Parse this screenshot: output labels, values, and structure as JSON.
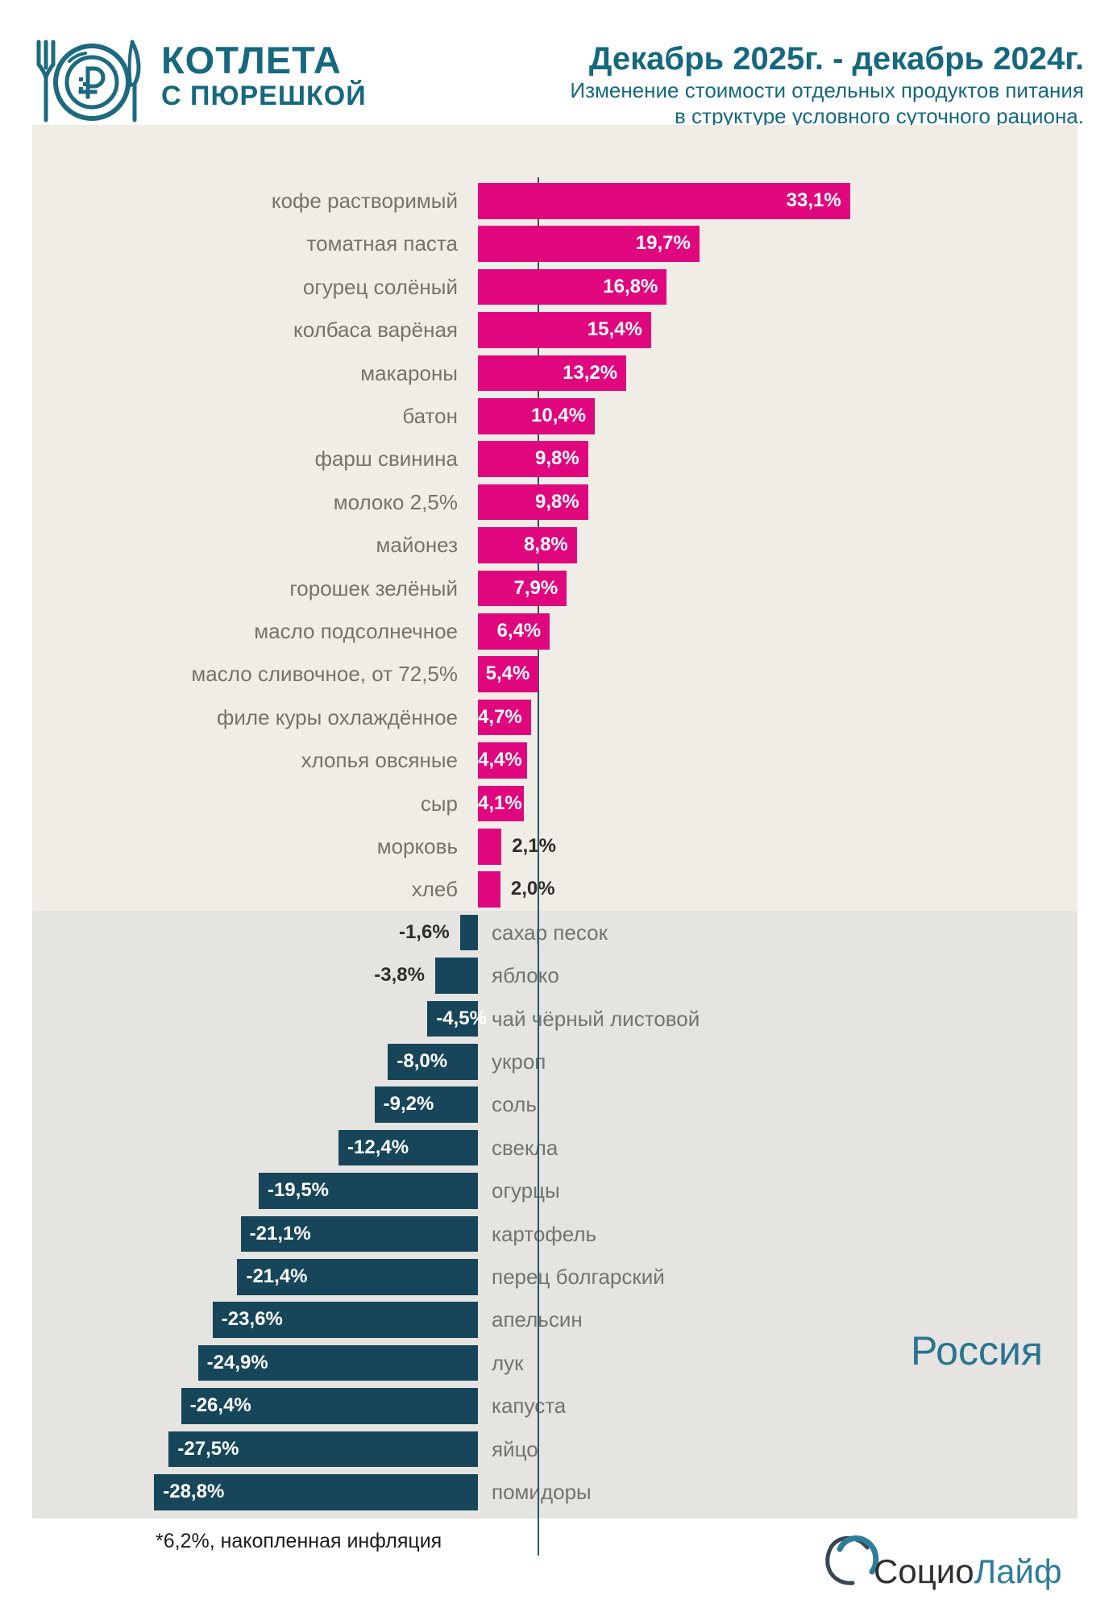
{
  "header": {
    "brand_line1": "КОТЛЕТА",
    "brand_line2": "С ПЮРЕШКОЙ",
    "title": "Декабрь 2025г. - декабрь 2024г.",
    "subtitle_line1": "Изменение стоимости отдельных продуктов питания",
    "subtitle_line2": "в структуре условного суточного рациона."
  },
  "chart_data": {
    "type": "bar",
    "orientation": "horizontal-diverging",
    "unit": "%",
    "title": "Декабрь 2025г. - декабрь 2024г.",
    "subtitle": "Изменение стоимости отдельных продуктов питания в структуре условного суточного рациона.",
    "xlim": [
      -30,
      34
    ],
    "grid": false,
    "region_label": "Россия",
    "reference_line": {
      "value": 6.2,
      "meaning": "накопленная инфляция"
    },
    "positive_color": "#e0077e",
    "negative_color": "#17465a",
    "items": [
      {
        "label": "кофе растворимый",
        "value": 33.1,
        "display": "33,1%"
      },
      {
        "label": "томатная паста",
        "value": 19.7,
        "display": "19,7%"
      },
      {
        "label": "огурец солёный",
        "value": 16.8,
        "display": "16,8%"
      },
      {
        "label": "колбаса варёная",
        "value": 15.4,
        "display": "15,4%"
      },
      {
        "label": "макароны",
        "value": 13.2,
        "display": "13,2%"
      },
      {
        "label": "батон",
        "value": 10.4,
        "display": "10,4%"
      },
      {
        "label": "фарш свинина",
        "value": 9.8,
        "display": "9,8%"
      },
      {
        "label": "молоко 2,5%",
        "value": 9.8,
        "display": "9,8%"
      },
      {
        "label": "майонез",
        "value": 8.8,
        "display": "8,8%"
      },
      {
        "label": "горошек зелёный",
        "value": 7.9,
        "display": "7,9%"
      },
      {
        "label": "масло подсолнечное",
        "value": 6.4,
        "display": "6,4%"
      },
      {
        "label": "масло сливочное, от 72,5%",
        "value": 5.4,
        "display": "5,4%"
      },
      {
        "label": "филе куры охлаждённое",
        "value": 4.7,
        "display": "4,7%"
      },
      {
        "label": "хлопья овсяные",
        "value": 4.4,
        "display": "4,4%"
      },
      {
        "label": "сыр",
        "value": 4.1,
        "display": "4,1%"
      },
      {
        "label": "морковь",
        "value": 2.1,
        "display": "2,1%"
      },
      {
        "label": "хлеб",
        "value": 2.0,
        "display": "2,0%"
      },
      {
        "label": "сахар песок",
        "value": -1.6,
        "display": "-1,6%"
      },
      {
        "label": "яблоко",
        "value": -3.8,
        "display": "-3,8%"
      },
      {
        "label": "чай чёрный листовой",
        "value": -4.5,
        "display": "-4,5%"
      },
      {
        "label": "укроп",
        "value": -8.0,
        "display": "-8,0%"
      },
      {
        "label": "соль",
        "value": -9.2,
        "display": "-9,2%"
      },
      {
        "label": "свекла",
        "value": -12.4,
        "display": "-12,4%"
      },
      {
        "label": "огурцы",
        "value": -19.5,
        "display": "-19,5%"
      },
      {
        "label": "картофель",
        "value": -21.1,
        "display": "-21,1%"
      },
      {
        "label": "перец болгарский",
        "value": -21.4,
        "display": "-21,4%"
      },
      {
        "label": "апельсин",
        "value": -23.6,
        "display": "-23,6%"
      },
      {
        "label": "лук",
        "value": -24.9,
        "display": "-24,9%"
      },
      {
        "label": "капуста",
        "value": -26.4,
        "display": "-26,4%"
      },
      {
        "label": "яйцо",
        "value": -27.5,
        "display": "-27,5%"
      },
      {
        "label": "помидоры",
        "value": -28.8,
        "display": "-28,8%"
      }
    ]
  },
  "footer": {
    "footnote": "*6,2%, накопленная инфляция",
    "logo_text_dark": "Социо",
    "logo_text_accent": "Лайф"
  },
  "colors": {
    "brand_teal": "#15687e",
    "bar_positive": "#e0077e",
    "bar_negative": "#17465a",
    "bg_positive_section": "#efede5",
    "bg_negative_section": "#e5e4e1",
    "category_text": "#74736d",
    "region_text": "#2a7391",
    "reference_line": "#28566b"
  }
}
